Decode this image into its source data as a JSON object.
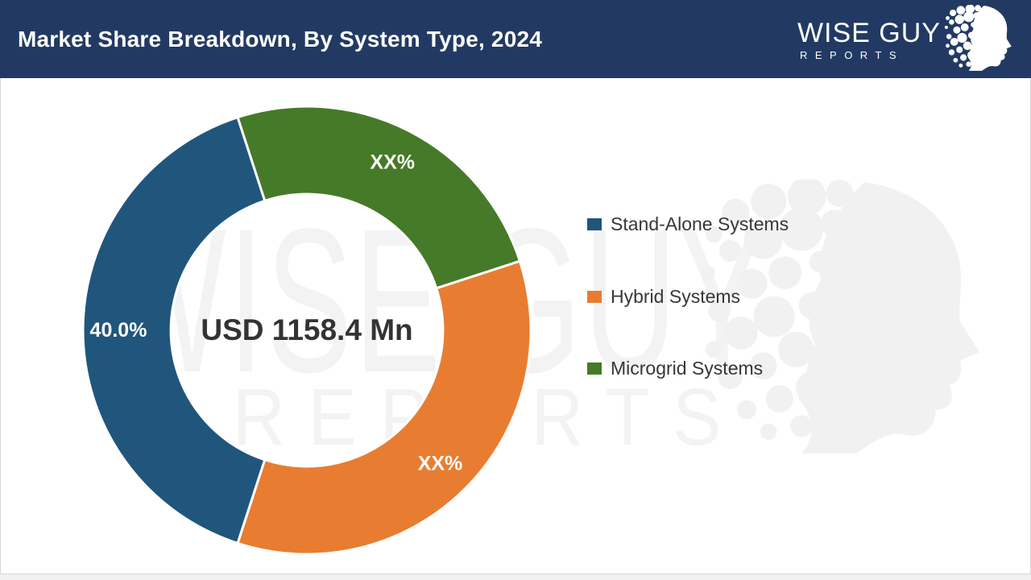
{
  "header": {
    "title": "Market Share Breakdown, By System Type, 2024",
    "background_color": "#223A63",
    "logo": {
      "line1": "WISE GUY",
      "line2": "REPORTS"
    }
  },
  "watermark": {
    "line1": "WISE GUY",
    "line2": "REPORTS"
  },
  "chart_data": {
    "type": "pie",
    "subtype": "donut",
    "title": "Market Share Breakdown, By System Type, 2024",
    "center_label": "USD 1158.4 Mn",
    "start_angle_deg": 108,
    "direction": "counterclockwise",
    "legend_position": "right",
    "gap_color": "#ffffff",
    "segments": [
      {
        "name": "Stand-Alone Systems",
        "label": "40.0%",
        "value_pct": 40.0,
        "color": "#20567C"
      },
      {
        "name": "Hybrid Systems",
        "label": "XX%",
        "value_pct": 35.0,
        "color": "#E87D31"
      },
      {
        "name": "Microgrid Systems",
        "label": "XX%",
        "value_pct": 25.0,
        "color": "#457A28"
      }
    ]
  }
}
